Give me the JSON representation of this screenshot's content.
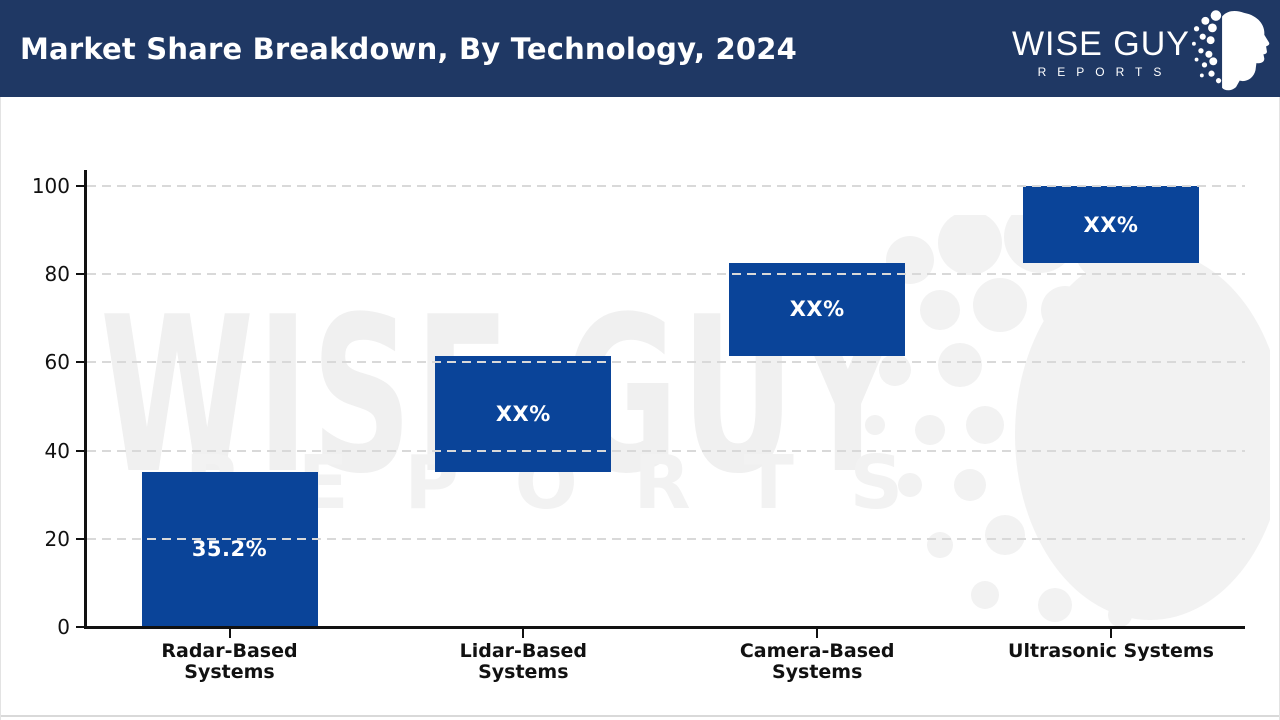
{
  "header": {
    "title": "Market Share Breakdown, By Technology, 2024",
    "bg_color": "#1f3864",
    "logo": {
      "line1": "WISE GUY",
      "line2": "REPORTS"
    }
  },
  "watermark": {
    "line1": "WISE GUY",
    "line2": "REPORTS"
  },
  "chart_data": {
    "type": "bar",
    "subtype": "waterfall",
    "title": "Market Share Breakdown, By Technology, 2024",
    "categories": [
      "Radar-Based Systems",
      "Lidar-Based Systems",
      "Camera-Based Systems",
      "Ultrasonic Systems"
    ],
    "category_lines": [
      [
        "Radar-Based",
        "Systems"
      ],
      [
        "Lidar-Based",
        "Systems"
      ],
      [
        "Camera-Based",
        "Systems"
      ],
      [
        "Ultrasonic Systems"
      ]
    ],
    "series": [
      {
        "name": "Market Share",
        "segments": [
          {
            "start": 0,
            "end": 35.2,
            "label": "35.2%"
          },
          {
            "start": 35.2,
            "end": 61.5,
            "label": "XX%"
          },
          {
            "start": 61.5,
            "end": 82.5,
            "label": "XX%"
          },
          {
            "start": 82.5,
            "end": 100,
            "label": "XX%"
          }
        ]
      }
    ],
    "ylim": [
      0,
      104
    ],
    "yticks": [
      0,
      20,
      40,
      60,
      80,
      100
    ],
    "xlabel": "",
    "ylabel": "",
    "grid": "dashed-horizontal",
    "legend": "none",
    "bar_color": "#0a4499",
    "bar_label_color": "#ffffff",
    "grid_color": "#d9d9d9",
    "axis_color": "#111111"
  }
}
